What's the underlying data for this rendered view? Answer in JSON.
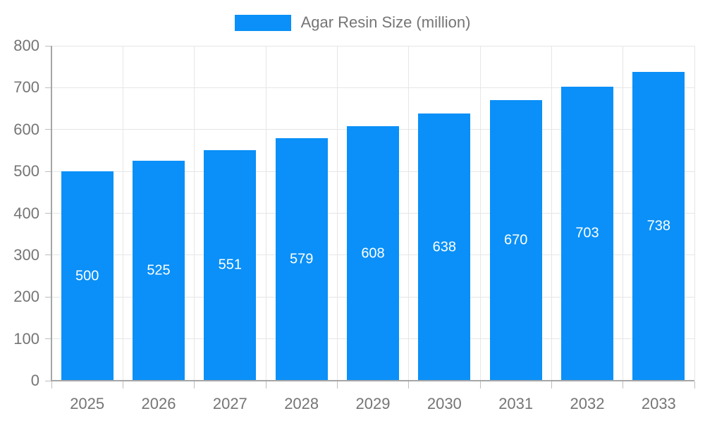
{
  "legend": {
    "label": "Agar Resin Size (million)"
  },
  "colors": {
    "bar": "#0a90f8",
    "axis_text": "#757575",
    "axis_line": "#a6a6a6",
    "gridline": "#e6e6e6",
    "tick": "#bdbdbd",
    "value_label": "#ffffff",
    "background": "#ffffff"
  },
  "chart_data": {
    "type": "bar",
    "title": "",
    "legend_entries": [
      "Agar Resin Size (million)"
    ],
    "legend_position": "top-center",
    "categories": [
      "2025",
      "2026",
      "2027",
      "2028",
      "2029",
      "2030",
      "2031",
      "2032",
      "2033"
    ],
    "values": [
      500,
      525,
      551,
      579,
      608,
      638,
      670,
      703,
      738
    ],
    "xlabel": "",
    "ylabel": "",
    "ylim": [
      0,
      800
    ],
    "ytick_step": 100,
    "ytick_labels": [
      "0",
      "100",
      "200",
      "300",
      "400",
      "500",
      "600",
      "700",
      "800"
    ],
    "grid": true,
    "value_labels": "inside-center-white"
  }
}
